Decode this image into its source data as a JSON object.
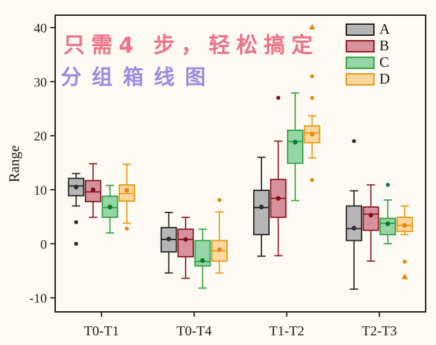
{
  "annotations": [
    {
      "text": "只需4 步，轻松搞定",
      "color": "#ed7187"
    },
    {
      "text": "分组箱线图",
      "color": "#9b8be0"
    }
  ],
  "colors": {
    "background": "#fcfaf2",
    "axis": "#1c1c1c"
  },
  "chart_data": {
    "type": "boxplot",
    "title": "",
    "xlabel": "",
    "ylabel": "Range",
    "ylim": [
      -12.6,
      42.3
    ],
    "yticks": [
      40,
      30,
      20,
      10,
      0,
      -10
    ],
    "legend_position": "top-right",
    "grid": false,
    "categories": [
      "T0-T1",
      "T0-T4",
      "T1-T2",
      "T2-T3"
    ],
    "series": [
      {
        "name": "A",
        "fill": "#b6b6b6",
        "stroke": "#1f1f1f",
        "mean_color": "#2e2e2e",
        "groups": [
          {
            "whislo": 7.0,
            "q1": 8.9,
            "med": 10.7,
            "mean": 10.5,
            "q3": 12.1,
            "whishi": 13.0,
            "outliers": [
              {
                "v": 4.0,
                "marker": "circle"
              },
              {
                "v": 0.0,
                "marker": "circle"
              }
            ]
          },
          {
            "whislo": -5.4,
            "q1": -1.5,
            "med": 0.8,
            "mean": 0.9,
            "q3": 3.0,
            "whishi": 5.8,
            "outliers": []
          },
          {
            "whislo": -2.3,
            "q1": 1.7,
            "med": 6.7,
            "mean": 6.8,
            "q3": 9.9,
            "whishi": 16.0,
            "outliers": []
          },
          {
            "whislo": -8.4,
            "q1": 0.6,
            "med": 2.8,
            "mean": 2.9,
            "q3": 7.0,
            "whishi": 9.8,
            "outliers": [
              {
                "v": 19.0,
                "marker": "circle"
              }
            ]
          }
        ]
      },
      {
        "name": "B",
        "fill": "#d7919c",
        "stroke": "#8c1523",
        "mean_color": "#7d1220",
        "groups": [
          {
            "whislo": 4.9,
            "q1": 7.8,
            "med": 9.6,
            "mean": 10.0,
            "q3": 11.7,
            "whishi": 14.8,
            "outliers": []
          },
          {
            "whislo": -6.4,
            "q1": -2.4,
            "med": 0.8,
            "mean": 0.8,
            "q3": 2.7,
            "whishi": 4.9,
            "outliers": []
          },
          {
            "whislo": -2.2,
            "q1": 4.9,
            "med": 8.4,
            "mean": 8.4,
            "q3": 11.9,
            "whishi": 19.0,
            "outliers": [
              {
                "v": 27.0,
                "marker": "circle"
              }
            ]
          },
          {
            "whislo": -3.2,
            "q1": 2.5,
            "med": 5.5,
            "mean": 5.3,
            "q3": 6.8,
            "whishi": 10.9,
            "outliers": []
          }
        ]
      },
      {
        "name": "C",
        "fill": "#94d6a5",
        "stroke": "#2f9e41",
        "mean_color": "#0d7a33",
        "groups": [
          {
            "whislo": 2.0,
            "q1": 4.9,
            "med": 6.7,
            "mean": 6.8,
            "q3": 8.8,
            "whishi": 10.8,
            "outliers": []
          },
          {
            "whislo": -8.2,
            "q1": -4.1,
            "med": -3.3,
            "mean": -3.1,
            "q3": 0.6,
            "whishi": 2.7,
            "outliers": []
          },
          {
            "whislo": 8.0,
            "q1": 14.9,
            "med": 18.9,
            "mean": 18.8,
            "q3": 21.0,
            "whishi": 27.9,
            "outliers": []
          },
          {
            "whislo": 0.0,
            "q1": 1.7,
            "med": 3.8,
            "mean": 3.7,
            "q3": 4.7,
            "whishi": 8.1,
            "outliers": [
              {
                "v": 10.9,
                "marker": "circle"
              }
            ]
          }
        ]
      },
      {
        "name": "D",
        "fill": "#fbd79f",
        "stroke": "#e8950f",
        "mean_color": "#e8860b",
        "groups": [
          {
            "whislo": 3.8,
            "q1": 7.9,
            "med": 9.3,
            "mean": 9.9,
            "q3": 10.9,
            "whishi": 14.7,
            "outliers": [
              {
                "v": 2.8,
                "marker": "circle"
              }
            ]
          },
          {
            "whislo": -5.4,
            "q1": -3.2,
            "med": -1.3,
            "mean": -1.1,
            "q3": 0.6,
            "whishi": 5.9,
            "outliers": [
              {
                "v": 8.1,
                "marker": "circle"
              }
            ]
          },
          {
            "whislo": 15.9,
            "q1": 18.7,
            "med": 20.5,
            "mean": 20.3,
            "q3": 21.8,
            "whishi": 23.7,
            "outliers": [
              {
                "v": 40.1,
                "marker": "triangle"
              },
              {
                "v": 31.0,
                "marker": "circle"
              },
              {
                "v": 27.0,
                "marker": "circle"
              },
              {
                "v": 11.8,
                "marker": "circle"
              }
            ]
          },
          {
            "whislo": 1.7,
            "q1": 2.3,
            "med": 3.4,
            "mean": 3.4,
            "q3": 4.9,
            "whishi": 7.0,
            "outliers": [
              {
                "v": -3.3,
                "marker": "circle"
              },
              {
                "v": -6.1,
                "marker": "triangle"
              }
            ]
          }
        ]
      }
    ]
  }
}
